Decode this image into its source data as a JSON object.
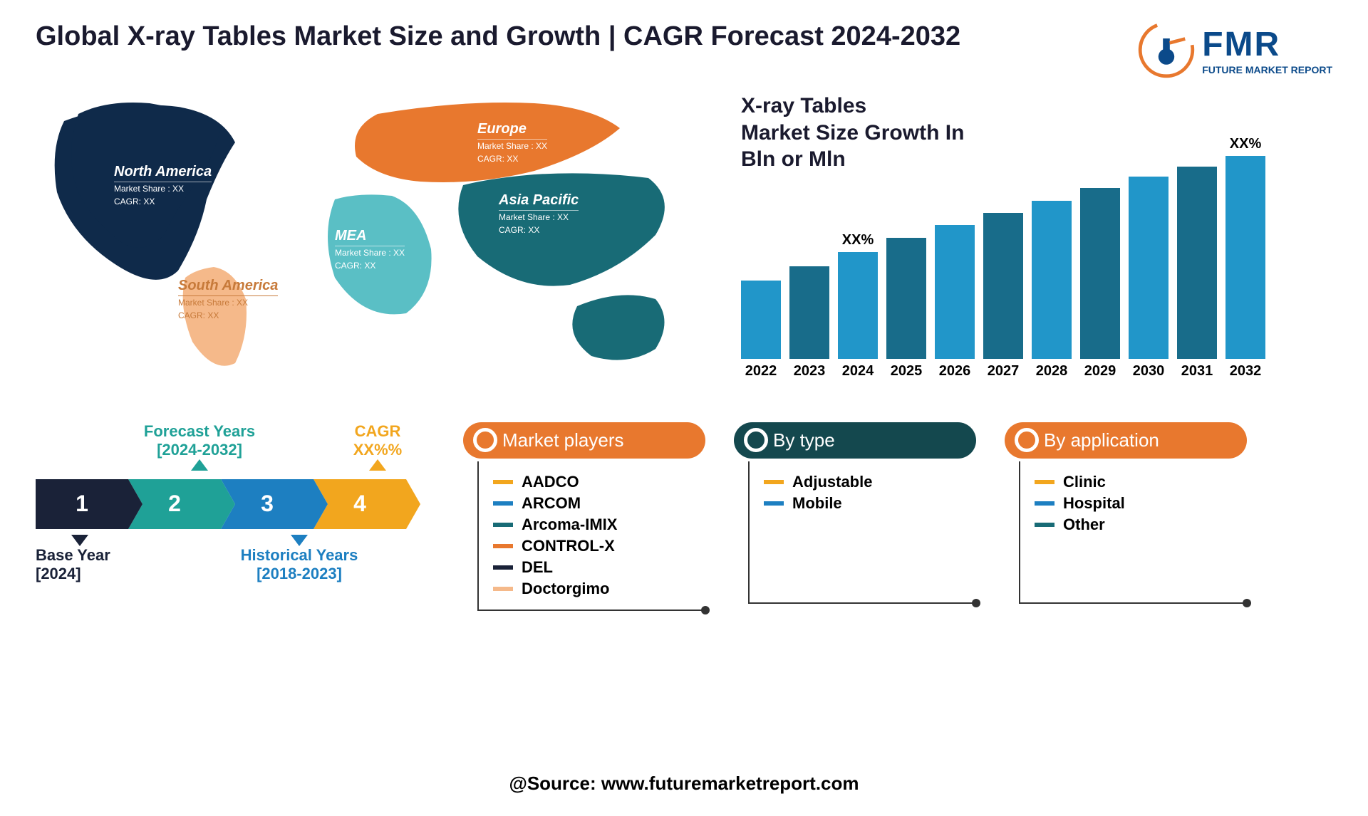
{
  "title": "Global X-ray Tables Market Size and Growth | CAGR Forecast 2024-2032",
  "logo": {
    "name": "FMR",
    "sub": "FUTURE MARKET REPORT"
  },
  "map": {
    "regions": [
      {
        "name": "North America",
        "share": "Market Share : XX",
        "cagr": "CAGR: XX",
        "color": "#0f2a4a"
      },
      {
        "name": "South America",
        "share": "Market Share : XX",
        "cagr": "CAGR: XX",
        "color": "#f5b98a",
        "text_color": "#c77a3a"
      },
      {
        "name": "Europe",
        "share": "Market Share : XX",
        "cagr": "CAGR: XX",
        "color": "#e8782e"
      },
      {
        "name": "MEA",
        "share": "Market Share : XX",
        "cagr": "CAGR: XX",
        "color": "#5abfc5"
      },
      {
        "name": "Asia Pacific",
        "share": "Market Share : XX",
        "cagr": "CAGR: XX",
        "color": "#186b76"
      }
    ]
  },
  "chart": {
    "title_l1": "X-ray Tables",
    "title_l2": "Market Size Growth In",
    "title_l3": "Bln or Mln",
    "bar_color_odd": "#2196c9",
    "bar_color_even": "#186c8a",
    "years": [
      "2022",
      "2023",
      "2024",
      "2025",
      "2026",
      "2027",
      "2028",
      "2029",
      "2030",
      "2031",
      "2032"
    ],
    "heights": [
      110,
      130,
      150,
      170,
      188,
      205,
      222,
      240,
      256,
      270,
      285
    ],
    "top_labels": [
      "",
      "",
      "XX%",
      "",
      "",
      "",
      "",
      "",
      "",
      "",
      "XX%"
    ]
  },
  "timeline": {
    "steps": [
      {
        "num": "1",
        "color": "#1a2238"
      },
      {
        "num": "2",
        "color": "#1fa197"
      },
      {
        "num": "3",
        "color": "#1d7fc1"
      },
      {
        "num": "4",
        "color": "#f2a61e"
      }
    ],
    "labels": {
      "forecast": {
        "t1": "Forecast Years",
        "t2": "[2024-2032]",
        "color": "#1fa197"
      },
      "cagr": {
        "t1": "CAGR",
        "t2": "XX%%",
        "color": "#f2a61e"
      },
      "base": {
        "t1": "Base Year",
        "t2": "[2024]",
        "color": "#1a2238"
      },
      "historical": {
        "t1": "Historical Years",
        "t2": "[2018-2023]",
        "color": "#1d7fc1"
      }
    }
  },
  "pills": [
    {
      "title": "Market players",
      "bg": "#e8782e",
      "items": [
        {
          "label": "AADCO",
          "color": "#f2a61e"
        },
        {
          "label": "ARCOM",
          "color": "#1d7fc1"
        },
        {
          "label": "Arcoma-IMIX",
          "color": "#186b76"
        },
        {
          "label": "CONTROL-X",
          "color": "#e8782e"
        },
        {
          "label": "DEL",
          "color": "#1a2238"
        },
        {
          "label": "Doctorgimo",
          "color": "#f5b98a"
        }
      ]
    },
    {
      "title": "By type",
      "bg": "#14484e",
      "items": [
        {
          "label": "Adjustable",
          "color": "#f2a61e"
        },
        {
          "label": "Mobile",
          "color": "#1d7fc1"
        }
      ]
    },
    {
      "title": "By application",
      "bg": "#e8782e",
      "items": [
        {
          "label": "Clinic",
          "color": "#f2a61e"
        },
        {
          "label": "Hospital",
          "color": "#1d7fc1"
        },
        {
          "label": "Other",
          "color": "#186b76"
        }
      ]
    }
  ],
  "source": "@Source: www.futuremarketreport.com"
}
